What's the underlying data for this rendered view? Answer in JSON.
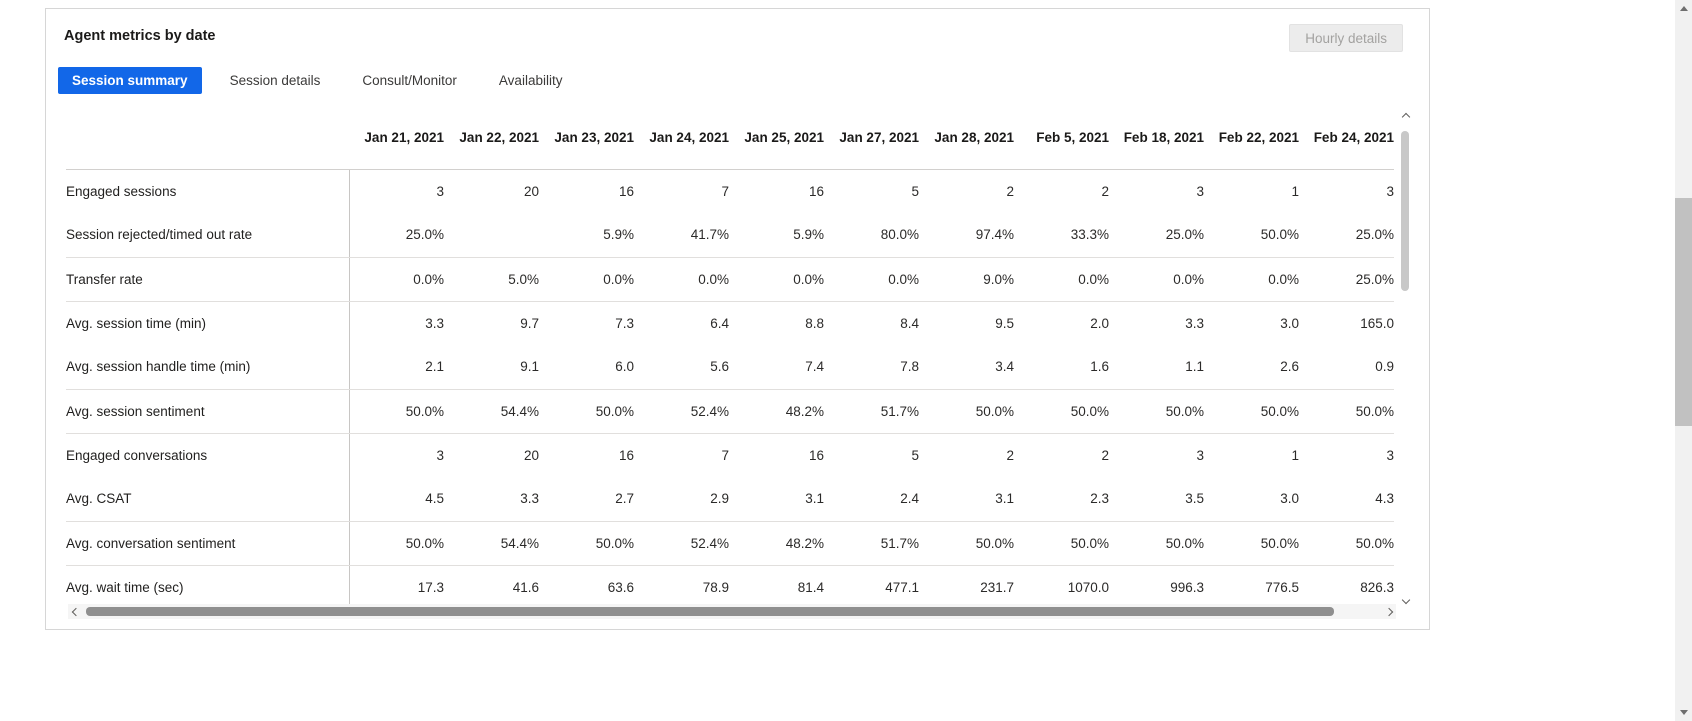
{
  "colors": {
    "accent": "#1267e8",
    "active_tab_text": "#ffffff",
    "disabled_button_text": "#a3a2a0"
  },
  "header": {
    "title": "Agent metrics by date",
    "hourly_details_label": "Hourly details"
  },
  "tabs": {
    "items": [
      {
        "label": "Session summary",
        "active": true
      },
      {
        "label": "Session details",
        "active": false
      },
      {
        "label": "Consult/Monitor",
        "active": false
      },
      {
        "label": "Availability",
        "active": false
      }
    ]
  },
  "table": {
    "corner_label": "",
    "columns": [
      "Jan 21, 2021",
      "Jan 22, 2021",
      "Jan 23, 2021",
      "Jan 24, 2021",
      "Jan 25, 2021",
      "Jan 27, 2021",
      "Jan 28, 2021",
      "Feb 5, 2021",
      "Feb 18, 2021",
      "Feb 22, 2021",
      "Feb 24, 2021"
    ],
    "rows": [
      {
        "label": "Engaged sessions",
        "values": [
          "3",
          "20",
          "16",
          "7",
          "16",
          "5",
          "2",
          "2",
          "3",
          "1",
          "3"
        ],
        "divider": false
      },
      {
        "label": "Session rejected/timed out rate",
        "values": [
          "25.0%",
          "",
          "5.9%",
          "41.7%",
          "5.9%",
          "80.0%",
          "97.4%",
          "33.3%",
          "25.0%",
          "50.0%",
          "25.0%"
        ],
        "divider": true
      },
      {
        "label": "Transfer rate",
        "values": [
          "0.0%",
          "5.0%",
          "0.0%",
          "0.0%",
          "0.0%",
          "0.0%",
          "9.0%",
          "0.0%",
          "0.0%",
          "0.0%",
          "25.0%"
        ],
        "divider": true
      },
      {
        "label": "Avg. session time (min)",
        "values": [
          "3.3",
          "9.7",
          "7.3",
          "6.4",
          "8.8",
          "8.4",
          "9.5",
          "2.0",
          "3.3",
          "3.0",
          "165.0"
        ],
        "divider": false
      },
      {
        "label": "Avg. session handle time (min)",
        "values": [
          "2.1",
          "9.1",
          "6.0",
          "5.6",
          "7.4",
          "7.8",
          "3.4",
          "1.6",
          "1.1",
          "2.6",
          "0.9"
        ],
        "divider": true
      },
      {
        "label": "Avg. session sentiment",
        "values": [
          "50.0%",
          "54.4%",
          "50.0%",
          "52.4%",
          "48.2%",
          "51.7%",
          "50.0%",
          "50.0%",
          "50.0%",
          "50.0%",
          "50.0%"
        ],
        "divider": true
      },
      {
        "label": "Engaged conversations",
        "values": [
          "3",
          "20",
          "16",
          "7",
          "16",
          "5",
          "2",
          "2",
          "3",
          "1",
          "3"
        ],
        "divider": false
      },
      {
        "label": "Avg. CSAT",
        "values": [
          "4.5",
          "3.3",
          "2.7",
          "2.9",
          "3.1",
          "2.4",
          "3.1",
          "2.3",
          "3.5",
          "3.0",
          "4.3"
        ],
        "divider": true
      },
      {
        "label": "Avg. conversation sentiment",
        "values": [
          "50.0%",
          "54.4%",
          "50.0%",
          "52.4%",
          "48.2%",
          "51.7%",
          "50.0%",
          "50.0%",
          "50.0%",
          "50.0%",
          "50.0%"
        ],
        "divider": true
      },
      {
        "label": "Avg. wait time (sec)",
        "values": [
          "17.3",
          "41.6",
          "63.6",
          "78.9",
          "81.4",
          "477.1",
          "231.7",
          "1070.0",
          "996.3",
          "776.5",
          "826.3"
        ],
        "divider": false
      }
    ]
  }
}
